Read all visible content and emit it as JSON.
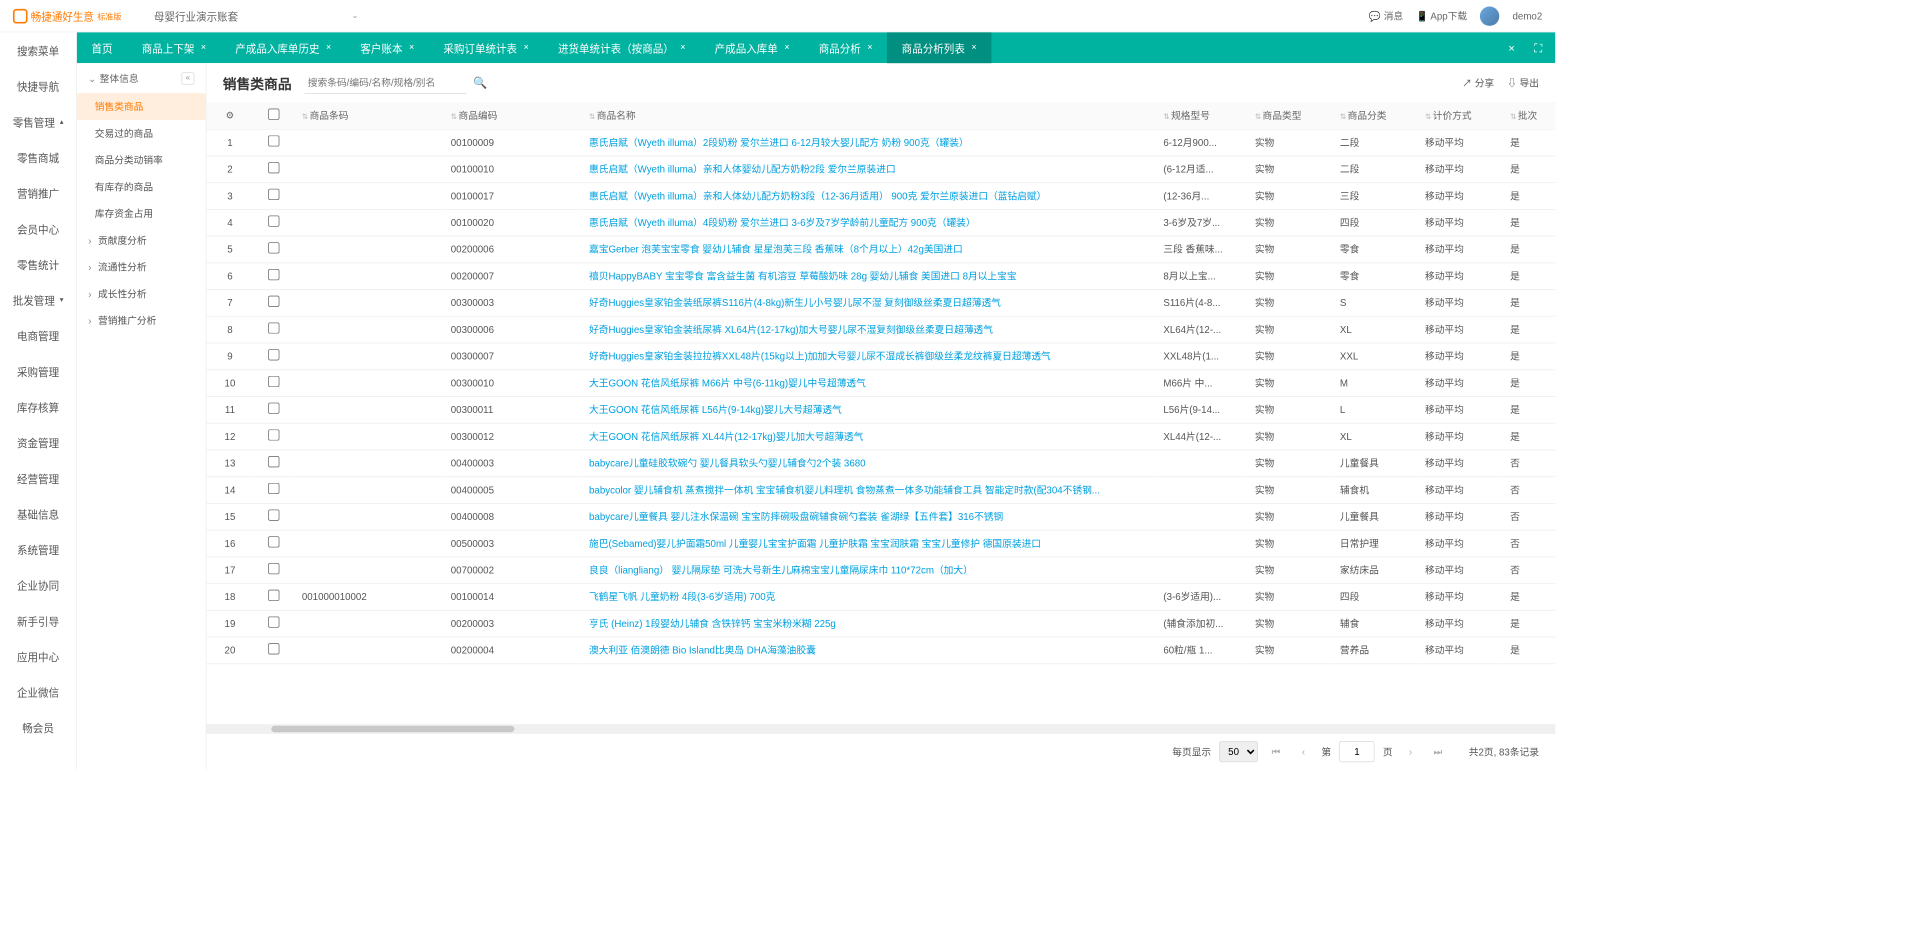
{
  "topbar": {
    "logo": "畅捷通好生意",
    "logo_sub": "标准版",
    "account": "母婴行业演示账套",
    "msg": "消息",
    "app": "App下载",
    "user": "demo2"
  },
  "sidebar": [
    {
      "label": "搜索菜单",
      "mode": ""
    },
    {
      "label": "快捷导航",
      "mode": ""
    },
    {
      "label": "零售管理",
      "mode": "expand"
    },
    {
      "label": "零售商城",
      "mode": ""
    },
    {
      "label": "营销推广",
      "mode": ""
    },
    {
      "label": "会员中心",
      "mode": ""
    },
    {
      "label": "零售统计",
      "mode": ""
    },
    {
      "label": "批发管理",
      "mode": "collapse"
    },
    {
      "label": "电商管理",
      "mode": ""
    },
    {
      "label": "采购管理",
      "mode": ""
    },
    {
      "label": "库存核算",
      "mode": ""
    },
    {
      "label": "资金管理",
      "mode": ""
    },
    {
      "label": "经营管理",
      "mode": ""
    },
    {
      "label": "基础信息",
      "mode": ""
    },
    {
      "label": "系统管理",
      "mode": ""
    },
    {
      "label": "企业协同",
      "mode": ""
    },
    {
      "label": "新手引导",
      "mode": ""
    },
    {
      "label": "应用中心",
      "mode": ""
    },
    {
      "label": "企业微信",
      "mode": ""
    },
    {
      "label": "畅会员",
      "mode": ""
    }
  ],
  "tabs": [
    {
      "label": "首页",
      "close": false
    },
    {
      "label": "商品上下架",
      "close": true
    },
    {
      "label": "产成品入库单历史",
      "close": true
    },
    {
      "label": "客户账本",
      "close": true
    },
    {
      "label": "采购订单统计表",
      "close": true
    },
    {
      "label": "进货单统计表（按商品）",
      "close": true
    },
    {
      "label": "产成品入库单",
      "close": true
    },
    {
      "label": "商品分析",
      "close": true
    },
    {
      "label": "商品分析列表",
      "close": true,
      "active": true
    }
  ],
  "panel": {
    "group_head": "整体信息",
    "items": [
      {
        "label": "销售类商品",
        "active": true
      },
      {
        "label": "交易过的商品"
      },
      {
        "label": "商品分类动销率"
      },
      {
        "label": "有库存的商品"
      },
      {
        "label": "库存资金占用"
      }
    ],
    "groups": [
      "贡献度分析",
      "流通性分析",
      "成长性分析",
      "营销推广分析"
    ]
  },
  "main": {
    "title": "销售类商品",
    "search_ph": "搜索条码/编码/名称/规格/别名",
    "share": "分享",
    "export": "导出"
  },
  "columns": [
    "",
    "",
    "商品条码",
    "商品编码",
    "商品名称",
    "规格型号",
    "商品类型",
    "商品分类",
    "计价方式",
    "批次"
  ],
  "rows": [
    {
      "n": 1,
      "bar": "",
      "code": "00100009",
      "name": "惠氏启赋（Wyeth illuma）2段奶粉 爱尔兰进口 6-12月较大婴儿配方 奶粉 900克（罐装）",
      "spec": "6-12月900...",
      "type": "实物",
      "cat": "二段",
      "calc": "移动平均",
      "wh": "是"
    },
    {
      "n": 2,
      "bar": "",
      "code": "00100010",
      "name": "惠氏启赋（Wyeth illuma）亲和人体婴幼儿配方奶粉2段 爱尔兰原装进口",
      "spec": "(6-12月适...",
      "type": "实物",
      "cat": "二段",
      "calc": "移动平均",
      "wh": "是"
    },
    {
      "n": 3,
      "bar": "",
      "code": "00100017",
      "name": "惠氏启赋（Wyeth illuma）亲和人体幼儿配方奶粉3段（12-36月适用） 900克 爱尔兰原装进口（蓝钻启赋）",
      "spec": "(12-36月...",
      "type": "实物",
      "cat": "三段",
      "calc": "移动平均",
      "wh": "是"
    },
    {
      "n": 4,
      "bar": "",
      "code": "00100020",
      "name": "惠氏启赋（Wyeth illuma）4段奶粉 爱尔兰进口 3-6岁及7岁学龄前儿童配方 900克（罐装）",
      "spec": "3-6岁及7岁...",
      "type": "实物",
      "cat": "四段",
      "calc": "移动平均",
      "wh": "是"
    },
    {
      "n": 5,
      "bar": "",
      "code": "00200006",
      "name": "嘉宝Gerber 泡芙宝宝零食 婴幼儿辅食 星星泡芙三段 香蕉味（8个月以上）42g美国进口",
      "spec": "三段 香蕉味...",
      "type": "实物",
      "cat": "零食",
      "calc": "移动平均",
      "wh": "是"
    },
    {
      "n": 6,
      "bar": "",
      "code": "00200007",
      "name": "禧贝HappyBABY 宝宝零食 富含益生菌 有机溶豆 草莓酸奶味 28g 婴幼儿辅食 美国进口 8月以上宝宝",
      "spec": "8月以上宝...",
      "type": "实物",
      "cat": "零食",
      "calc": "移动平均",
      "wh": "是"
    },
    {
      "n": 7,
      "bar": "",
      "code": "00300003",
      "name": "好奇Huggies皇家铂金装纸尿裤S116片(4-8kg)新生儿小号婴儿尿不湿 复刻御级丝柔夏日超薄透气",
      "spec": "S116片(4-8...",
      "type": "实物",
      "cat": "S",
      "calc": "移动平均",
      "wh": "是"
    },
    {
      "n": 8,
      "bar": "",
      "code": "00300006",
      "name": "好奇Huggies皇家铂金装纸尿裤 XL64片(12-17kg)加大号婴儿尿不湿复刻御级丝柔夏日超薄透气",
      "spec": "XL64片(12-...",
      "type": "实物",
      "cat": "XL",
      "calc": "移动平均",
      "wh": "是"
    },
    {
      "n": 9,
      "bar": "",
      "code": "00300007",
      "name": "好奇Huggies皇家铂金装拉拉裤XXL48片(15kg以上)加加大号婴儿尿不湿成长裤御级丝柔龙纹裤夏日超薄透气",
      "spec": "XXL48片(1...",
      "type": "实物",
      "cat": "XXL",
      "calc": "移动平均",
      "wh": "是"
    },
    {
      "n": 10,
      "bar": "",
      "code": "00300010",
      "name": "大王GOON 花信风纸尿裤 M66片 中号(6-11kg)婴儿中号超薄透气",
      "spec": "M66片 中...",
      "type": "实物",
      "cat": "M",
      "calc": "移动平均",
      "wh": "是"
    },
    {
      "n": 11,
      "bar": "",
      "code": "00300011",
      "name": "大王GOON 花信风纸尿裤 L56片(9-14kg)婴儿大号超薄透气",
      "spec": "L56片(9-14...",
      "type": "实物",
      "cat": "L",
      "calc": "移动平均",
      "wh": "是"
    },
    {
      "n": 12,
      "bar": "",
      "code": "00300012",
      "name": "大王GOON 花信风纸尿裤 XL44片(12-17kg)婴儿加大号超薄透气",
      "spec": "XL44片(12-...",
      "type": "实物",
      "cat": "XL",
      "calc": "移动平均",
      "wh": "是"
    },
    {
      "n": 13,
      "bar": "",
      "code": "00400003",
      "name": "babycare儿童硅胶软碗勺 婴儿餐具软头勺婴儿辅食勺2个装 3680",
      "spec": "",
      "type": "实物",
      "cat": "儿童餐具",
      "calc": "移动平均",
      "wh": "否"
    },
    {
      "n": 14,
      "bar": "",
      "code": "00400005",
      "name": "babycolor 婴儿辅食机 蒸煮搅拌一体机 宝宝辅食机婴儿料理机 食物蒸煮一体多功能辅食工具 智能定时款(配304不锈钢...",
      "spec": "",
      "type": "实物",
      "cat": "辅食机",
      "calc": "移动平均",
      "wh": "否"
    },
    {
      "n": 15,
      "bar": "",
      "code": "00400008",
      "name": "babycare儿童餐具 婴儿注水保温碗 宝宝防摔碗吸盘碗辅食碗勺套装 雀湖绿【五件套】316不锈钢",
      "spec": "",
      "type": "实物",
      "cat": "儿童餐具",
      "calc": "移动平均",
      "wh": "否"
    },
    {
      "n": 16,
      "bar": "",
      "code": "00500003",
      "name": "施巴(Sebamed)婴儿护面霜50ml 儿童婴儿宝宝护面霜 儿童护肤霜 宝宝润肤霜 宝宝儿童修护 德国原装进口",
      "spec": "",
      "type": "实物",
      "cat": "日常护理",
      "calc": "移动平均",
      "wh": "否"
    },
    {
      "n": 17,
      "bar": "",
      "code": "00700002",
      "name": "良良（liangliang） 婴儿隔尿垫 可洗大号新生儿麻棉宝宝儿童隔尿床巾 110*72cm（加大）",
      "spec": "",
      "type": "实物",
      "cat": "家纺床品",
      "calc": "移动平均",
      "wh": "否"
    },
    {
      "n": 18,
      "bar": "001000010002",
      "code": "00100014",
      "name": "飞鹤星飞帆 儿童奶粉 4段(3-6岁适用) 700克",
      "spec": "(3-6岁适用)...",
      "type": "实物",
      "cat": "四段",
      "calc": "移动平均",
      "wh": "是"
    },
    {
      "n": 19,
      "bar": "",
      "code": "00200003",
      "name": "亨氏 (Heinz) 1段婴幼儿辅食 含铁锌钙 宝宝米粉米糊 225g",
      "spec": "(辅食添加初...",
      "type": "实物",
      "cat": "辅食",
      "calc": "移动平均",
      "wh": "是"
    },
    {
      "n": 20,
      "bar": "",
      "code": "00200004",
      "name": "澳大利亚 佰澳朗德 Bio Island比奥岛 DHA海藻油胶囊",
      "spec": "60粒/瓶 1...",
      "type": "实物",
      "cat": "营养品",
      "calc": "移动平均",
      "wh": "是"
    }
  ],
  "pager": {
    "per_label": "每页显示",
    "per_value": "50",
    "page_label_pre": "第",
    "page_value": "1",
    "page_label_post": "页",
    "summary": "共2页, 83条记录"
  }
}
